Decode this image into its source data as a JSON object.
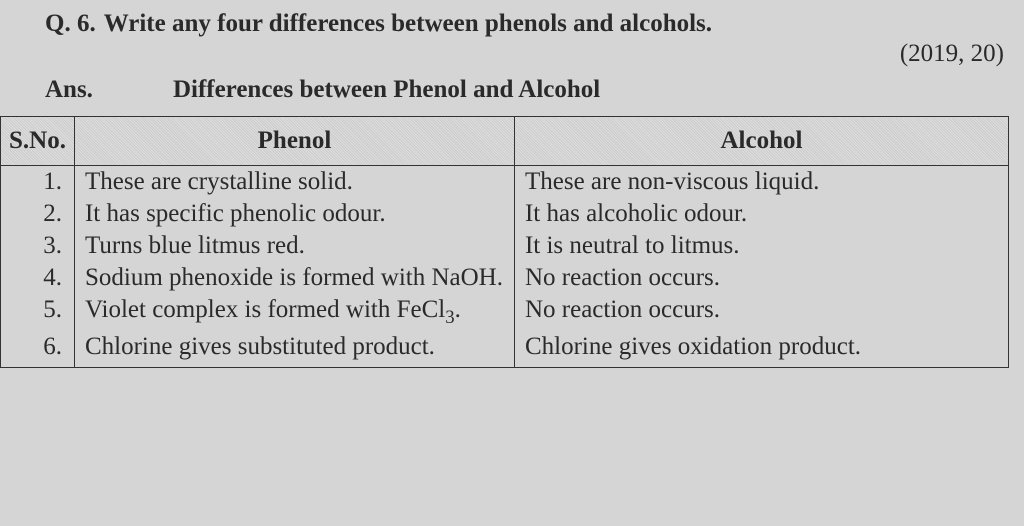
{
  "question": {
    "number": "Q. 6.",
    "text": "Write any four differences between phenols and alcohols.",
    "year": "(2019, 20)"
  },
  "answer": {
    "label": "Ans.",
    "title": "Differences between Phenol and Alcohol"
  },
  "table": {
    "headers": {
      "sno": "S.No.",
      "phenol": "Phenol",
      "alcohol": "Alcohol"
    },
    "rows": [
      {
        "sno": "1.",
        "phenol": "These are crystalline solid.",
        "alcohol": "These are non-viscous liquid."
      },
      {
        "sno": "2.",
        "phenol": "It has specific phenolic odour.",
        "alcohol": "It has alcoholic odour."
      },
      {
        "sno": "3.",
        "phenol": "Turns blue litmus red.",
        "alcohol": "It is neutral to litmus."
      },
      {
        "sno": "4.",
        "phenol": "Sodium phenoxide is formed with NaOH.",
        "alcohol": "No reaction occurs."
      },
      {
        "sno": "5.",
        "phenol": "Violet complex is formed with FeCl",
        "phenol_sub": "3",
        "phenol_suffix": ".",
        "alcohol": "No reaction occurs."
      },
      {
        "sno": "6.",
        "phenol": "Chlorine gives substituted product.",
        "alcohol": "Chlorine gives oxidation product."
      }
    ]
  },
  "colors": {
    "background": "#d5d5d5",
    "text": "#2a2a2a",
    "border": "#333333"
  }
}
